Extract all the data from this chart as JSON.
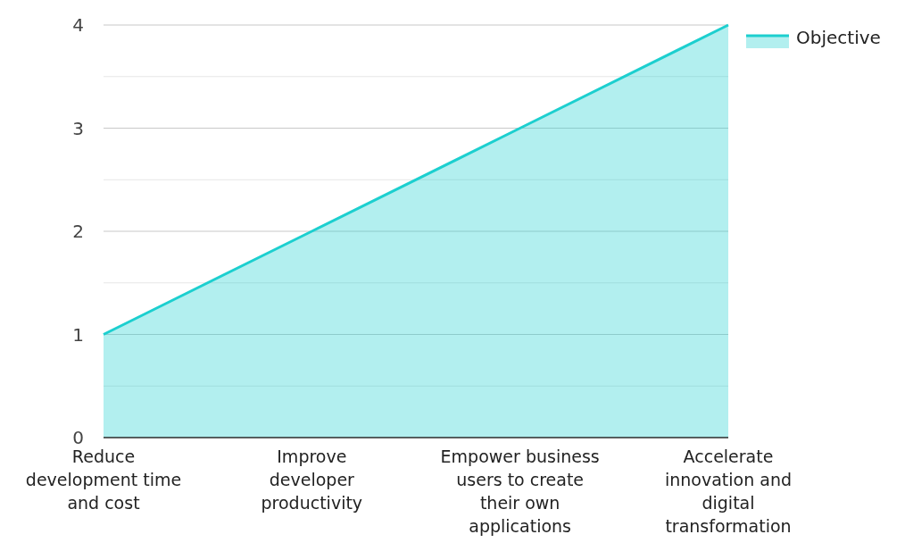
{
  "chart_data": {
    "type": "area",
    "categories": [
      "Reduce development time and cost",
      "Improve developer productivity",
      "Empower business users to create their own applications",
      "Accelerate innovation and digital transformation"
    ],
    "series": [
      {
        "name": "Objective",
        "color": "#1ccfcf",
        "values": [
          1,
          2,
          3,
          4
        ]
      }
    ],
    "ylim": [
      0,
      4
    ],
    "yticks": [
      0,
      {
        "value": 0.5,
        "label": null
      },
      1,
      {
        "value": 1.5,
        "label": null
      },
      2,
      {
        "value": 2.5,
        "label": null
      },
      3,
      {
        "value": 3.5,
        "label": null
      },
      4
    ],
    "grid": "y",
    "legend": "top right"
  }
}
